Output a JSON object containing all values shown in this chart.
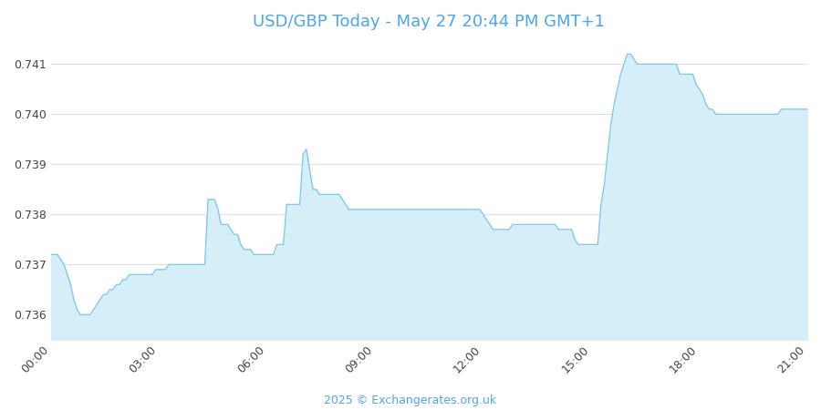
{
  "title": "USD/GBP Today - May 27 20:44 PM GMT+1",
  "footer": "2025 © Exchangerates.org.uk",
  "title_color": "#4da6e8",
  "footer_color": "#4da6e8",
  "line_color": "#7ec8e3",
  "fill_color": "#d6eef8",
  "background_color": "#ffffff",
  "grid_color": "#e0e0e0",
  "yticks": [
    0.736,
    0.737,
    0.738,
    0.739,
    0.74,
    0.741
  ],
  "xtick_labels": [
    "00:00",
    "03:00",
    "06:00",
    "09:00",
    "12:00",
    "15:00",
    "18:00",
    "21:00"
  ],
  "ylim": [
    0.7355,
    0.7415
  ],
  "time_series": [
    0.7372,
    0.7372,
    0.7372,
    0.7371,
    0.737,
    0.7368,
    0.7366,
    0.7363,
    0.7361,
    0.736,
    0.736,
    0.736,
    0.736,
    0.7361,
    0.7362,
    0.7363,
    0.7364,
    0.7364,
    0.7365,
    0.7365,
    0.7366,
    0.7366,
    0.7367,
    0.7367,
    0.7368,
    0.7368,
    0.7368,
    0.7368,
    0.7368,
    0.7368,
    0.7368,
    0.7368,
    0.7369,
    0.7369,
    0.7369,
    0.7369,
    0.737,
    0.737,
    0.737,
    0.737,
    0.737,
    0.737,
    0.737,
    0.737,
    0.737,
    0.737,
    0.737,
    0.737,
    0.7383,
    0.7383,
    0.7383,
    0.7381,
    0.7378,
    0.7378,
    0.7378,
    0.7377,
    0.7376,
    0.7376,
    0.7374,
    0.7373,
    0.7373,
    0.7373,
    0.7372,
    0.7372,
    0.7372,
    0.7372,
    0.7372,
    0.7372,
    0.7372,
    0.7374,
    0.7374,
    0.7374,
    0.7382,
    0.7382,
    0.7382,
    0.7382,
    0.7382,
    0.7392,
    0.7393,
    0.7389,
    0.7385,
    0.7385,
    0.7384,
    0.7384,
    0.7384,
    0.7384,
    0.7384,
    0.7384,
    0.7384,
    0.7383,
    0.7382,
    0.7381,
    0.7381,
    0.7381,
    0.7381,
    0.7381,
    0.7381,
    0.7381,
    0.7381,
    0.7381,
    0.7381,
    0.7381,
    0.7381,
    0.7381,
    0.7381,
    0.7381,
    0.7381,
    0.7381,
    0.7381,
    0.7381,
    0.7381,
    0.7381,
    0.7381,
    0.7381,
    0.7381,
    0.7381,
    0.7381,
    0.7381,
    0.7381,
    0.7381,
    0.7381,
    0.7381,
    0.7381,
    0.7381,
    0.7381,
    0.7381,
    0.7381,
    0.7381,
    0.7381,
    0.7381,
    0.7381,
    0.7381,
    0.738,
    0.7379,
    0.7378,
    0.7377,
    0.7377,
    0.7377,
    0.7377,
    0.7377,
    0.7377,
    0.7378,
    0.7378,
    0.7378,
    0.7378,
    0.7378,
    0.7378,
    0.7378,
    0.7378,
    0.7378,
    0.7378,
    0.7378,
    0.7378,
    0.7378,
    0.7378,
    0.7377,
    0.7377,
    0.7377,
    0.7377,
    0.7377,
    0.7375,
    0.7374,
    0.7374,
    0.7374,
    0.7374,
    0.7374,
    0.7374,
    0.7374,
    0.7382,
    0.7386,
    0.7392,
    0.7398,
    0.7402,
    0.7405,
    0.7408,
    0.741,
    0.7412,
    0.7412,
    0.7411,
    0.741,
    0.741,
    0.741,
    0.741,
    0.741,
    0.741,
    0.741,
    0.741,
    0.741,
    0.741,
    0.741,
    0.741,
    0.741,
    0.7408,
    0.7408,
    0.7408,
    0.7408,
    0.7408,
    0.7406,
    0.7405,
    0.7404,
    0.7402,
    0.7401,
    0.7401,
    0.74,
    0.74,
    0.74,
    0.74,
    0.74,
    0.74,
    0.74,
    0.74,
    0.74,
    0.74,
    0.74,
    0.74,
    0.74,
    0.74,
    0.74,
    0.74,
    0.74,
    0.74,
    0.74,
    0.74,
    0.7401,
    0.7401,
    0.7401,
    0.7401,
    0.7401,
    0.7401,
    0.7401,
    0.7401,
    0.7401
  ]
}
